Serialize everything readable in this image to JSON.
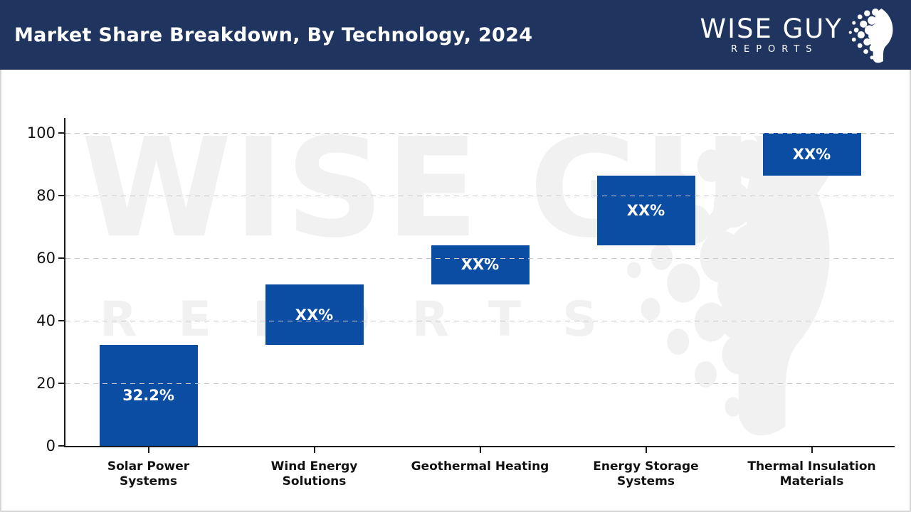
{
  "header": {
    "title": "Market Share Breakdown, By Technology, 2024",
    "background_color": "#1f345e",
    "logo": {
      "wordmark": "WISE GUY",
      "subtext": "REPORTS"
    }
  },
  "watermark": {
    "wordmark": "WISE GUY",
    "subtext": "REPORTS"
  },
  "chart_data": {
    "type": "bar",
    "subtype": "waterfall",
    "title": "Market Share Breakdown, By Technology, 2024",
    "categories": [
      "Solar Power Systems",
      "Wind Energy Solutions",
      "Geothermal Heating",
      "Energy Storage Systems",
      "Thermal Insulation Materials"
    ],
    "category_lines": [
      [
        "Solar Power",
        "Systems"
      ],
      [
        "Wind Energy",
        "Solutions"
      ],
      [
        "Geothermal Heating"
      ],
      [
        "Energy Storage",
        "Systems"
      ],
      [
        "Thermal Insulation",
        "Materials"
      ]
    ],
    "segments": [
      {
        "category": "Solar Power Systems",
        "start": 0,
        "end": 32.2,
        "label": "32.2%"
      },
      {
        "category": "Wind Energy Solutions",
        "start": 32.2,
        "end": 51.6,
        "label": "XX%"
      },
      {
        "category": "Geothermal Heating",
        "start": 51.6,
        "end": 64.2,
        "label": "XX%"
      },
      {
        "category": "Energy Storage Systems",
        "start": 64.2,
        "end": 86.3,
        "label": "XX%"
      },
      {
        "category": "Thermal Insulation Materials",
        "start": 86.3,
        "end": 100,
        "label": "XX%"
      }
    ],
    "ylim": [
      0,
      100
    ],
    "yticks": [
      0,
      20,
      40,
      60,
      80,
      100
    ],
    "xlabel": "",
    "ylabel": "",
    "grid": {
      "axis": "y",
      "style": "dashed",
      "color": "#c9c9c9",
      "over_bars": true
    },
    "legend": "none",
    "bar_color": "#0b4da2",
    "bar_label_color": "#ffffff"
  }
}
